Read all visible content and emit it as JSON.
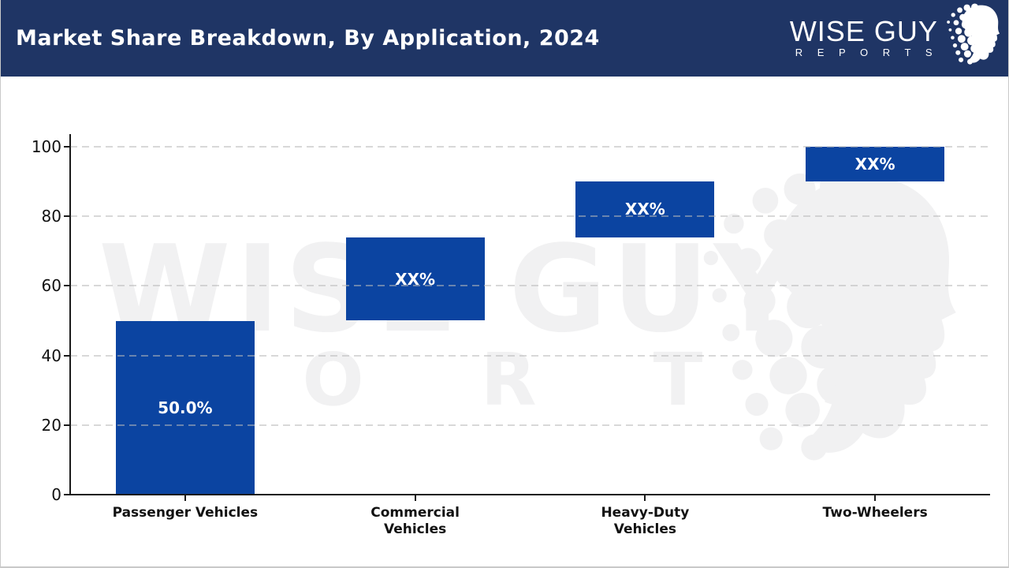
{
  "header": {
    "title": "Market Share Breakdown, By Application, 2024",
    "bg_color": "#1f3565",
    "logo": {
      "line1": "WISE GUY",
      "line2": "R E P O R T S"
    }
  },
  "watermark": {
    "line1": "WISE GUY",
    "line2": "P O R T S"
  },
  "chart_data": {
    "type": "bar",
    "subtype": "waterfall",
    "title": "Market Share Breakdown, By Application, 2024",
    "categories": [
      "Passenger Vehicles",
      "Commercial Vehicles",
      "Heavy-Duty Vehicles",
      "Two-Wheelers"
    ],
    "category_label_lines": [
      [
        "Passenger Vehicles"
      ],
      [
        "Commercial",
        "Vehicles"
      ],
      [
        "Heavy-Duty",
        "Vehicles"
      ],
      [
        "Two-Wheelers"
      ]
    ],
    "segments": [
      {
        "category": "Passenger Vehicles",
        "start": 0,
        "end": 50,
        "value": 50.0,
        "label": "50.0%"
      },
      {
        "category": "Commercial Vehicles",
        "start": 50,
        "end": 74,
        "value": 24,
        "label": "XX%"
      },
      {
        "category": "Heavy-Duty Vehicles",
        "start": 74,
        "end": 90,
        "value": 16,
        "label": "XX%"
      },
      {
        "category": "Two-Wheelers",
        "start": 90,
        "end": 100,
        "value": 10,
        "label": "XX%"
      }
    ],
    "xlabel": "",
    "ylabel": "",
    "ylim": [
      0,
      100
    ],
    "yticks": [
      0,
      20,
      40,
      60,
      80,
      100
    ],
    "grid": "horizontal-dashed",
    "legend": "none",
    "bar_color": "#0b44a1",
    "bar_label_color": "#ffffff",
    "axis_color": "#1a1a1a",
    "gridline_color": "#d9d9d9"
  }
}
